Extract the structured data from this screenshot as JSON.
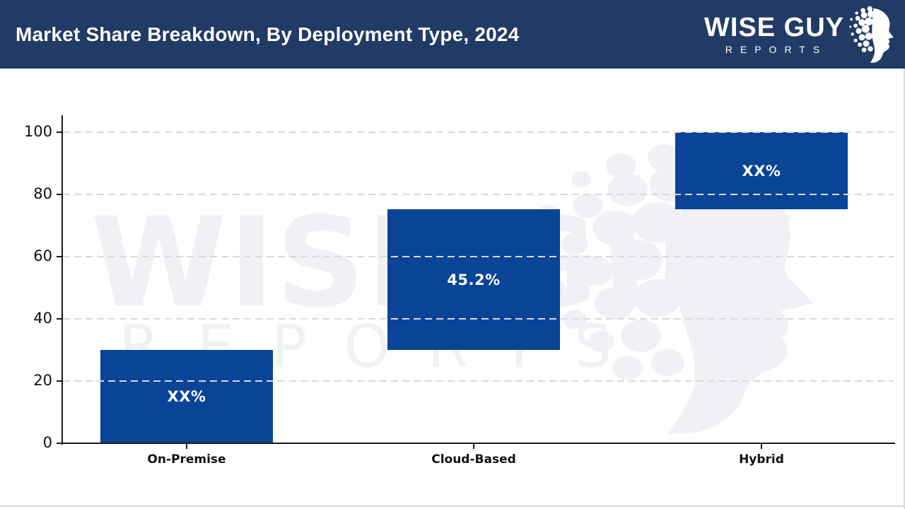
{
  "header": {
    "title": "Market Share Breakdown, By Deployment Type, 2024",
    "bg_color": "#213a66",
    "text_color": "#ffffff",
    "logo": {
      "wordmark": "WISE GUY",
      "tagline": "REPORTS",
      "face_icon": "dotted-face-profile"
    }
  },
  "watermark": {
    "wordmark": "WISE GUY",
    "tagline": "REPORTS",
    "color": "#eff1f5"
  },
  "chart_data": {
    "type": "bar",
    "subtype": "floating-waterfall",
    "title": "Market Share Breakdown, By Deployment Type, 2024",
    "categories": [
      "On-Premise",
      "Cloud-Based",
      "Hybrid"
    ],
    "series": [
      {
        "name": "Market Share",
        "segments": [
          {
            "category": "On-Premise",
            "start": 0,
            "end": 30,
            "label": "XX%"
          },
          {
            "category": "Cloud-Based",
            "start": 30,
            "end": 75.2,
            "label": "45.2%"
          },
          {
            "category": "Hybrid",
            "start": 75.2,
            "end": 100,
            "label": "XX%"
          }
        ]
      }
    ],
    "xlabel": "",
    "ylabel": "",
    "ylim": [
      0,
      100
    ],
    "yticks": [
      0,
      20,
      40,
      60,
      80,
      100
    ],
    "grid": "horizontal-dashed-over-bars",
    "legend": "none",
    "bar_color": "#0a4496",
    "bar_label_color": "#ffffff",
    "axis_color": "#1a1a1a",
    "grid_color": "#d9d9d9"
  }
}
